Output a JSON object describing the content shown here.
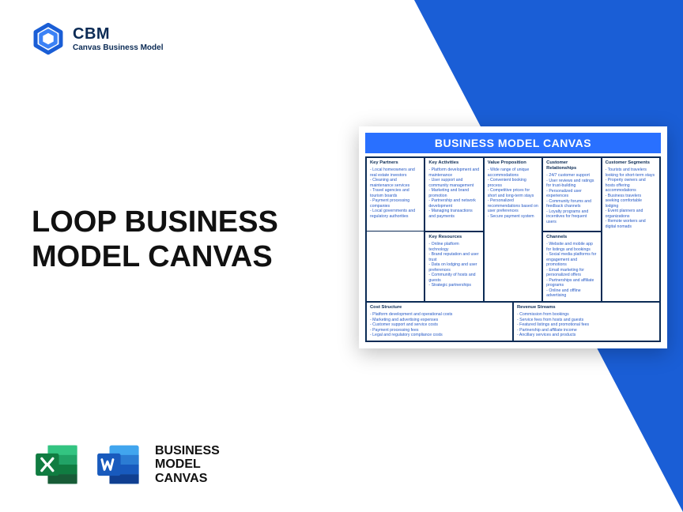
{
  "brand": {
    "name": "CBM",
    "tagline": "Canvas Business Model"
  },
  "headline": "LOOP BUSINESS MODEL CANVAS",
  "footer_label": "BUSINESS MODEL CANVAS",
  "colors": {
    "accent": "#1a5ed6",
    "title_bg": "#2970ff",
    "text_dark": "#0b2b55",
    "cell_text": "#2458c5",
    "excel": "#107c41",
    "word": "#2b579a"
  },
  "canvas": {
    "title": "BUSINESS MODEL CANVAS",
    "top": {
      "key_partners": {
        "title": "Key Partners",
        "items": [
          "Local homeowners and real estate investors",
          "Cleaning and maintenance services",
          "Travel agencies and tourism boards",
          "Payment processing companies",
          "Local governments and regulatory authorities"
        ]
      },
      "key_activities": {
        "title": "Key Activities",
        "items": [
          "Platform development and maintenance",
          "User support and community management",
          "Marketing and brand promotion",
          "Partnership and network development",
          "Managing transactions and payments"
        ]
      },
      "value_proposition": {
        "title": "Value Proposition",
        "items": [
          "Wide range of unique accommodations",
          "Convenient booking process",
          "Competitive prices for short and long-term stays",
          "Personalized recommendations based on user preferences",
          "Secure payment system"
        ]
      },
      "customer_relationships": {
        "title": "Customer Relationships",
        "items": [
          "24/7 customer support",
          "User reviews and ratings for trust-building",
          "Personalized user experiences",
          "Community forums and feedback channels",
          "Loyalty programs and incentives for frequent users"
        ]
      },
      "customer_segments": {
        "title": "Customer Segments",
        "items": [
          "Tourists and travelers looking for short-term stays",
          "Property owners and hosts offering accommodations",
          "Business travelers seeking comfortable lodging",
          "Event planners and organizations",
          "Remote workers and digital nomads"
        ]
      }
    },
    "mid": {
      "key_resources": {
        "title": "Key Resources",
        "items": [
          "Online platform technology",
          "Brand reputation and user trust",
          "Data on lodging and user preferences",
          "Community of hosts and guests",
          "Strategic partnerships"
        ]
      },
      "channels": {
        "title": "Channels",
        "items": [
          "Website and mobile app for listings and bookings",
          "Social media platforms for engagement and promotions",
          "Email marketing for personalized offers",
          "Partnerships and affiliate programs",
          "Online and offline advertising"
        ]
      }
    },
    "bottom": {
      "cost_structure": {
        "title": "Cost Structure",
        "items": [
          "Platform development and operational costs",
          "Marketing and advertising expenses",
          "Customer support and service costs",
          "Payment processing fees",
          "Legal and regulatory compliance costs"
        ]
      },
      "revenue_streams": {
        "title": "Revenue Streams",
        "items": [
          "Commission from bookings",
          "Service fees from hosts and guests",
          "Featured listings and promotional fees",
          "Partnership and affiliate income",
          "Ancillary services and products"
        ]
      }
    }
  }
}
